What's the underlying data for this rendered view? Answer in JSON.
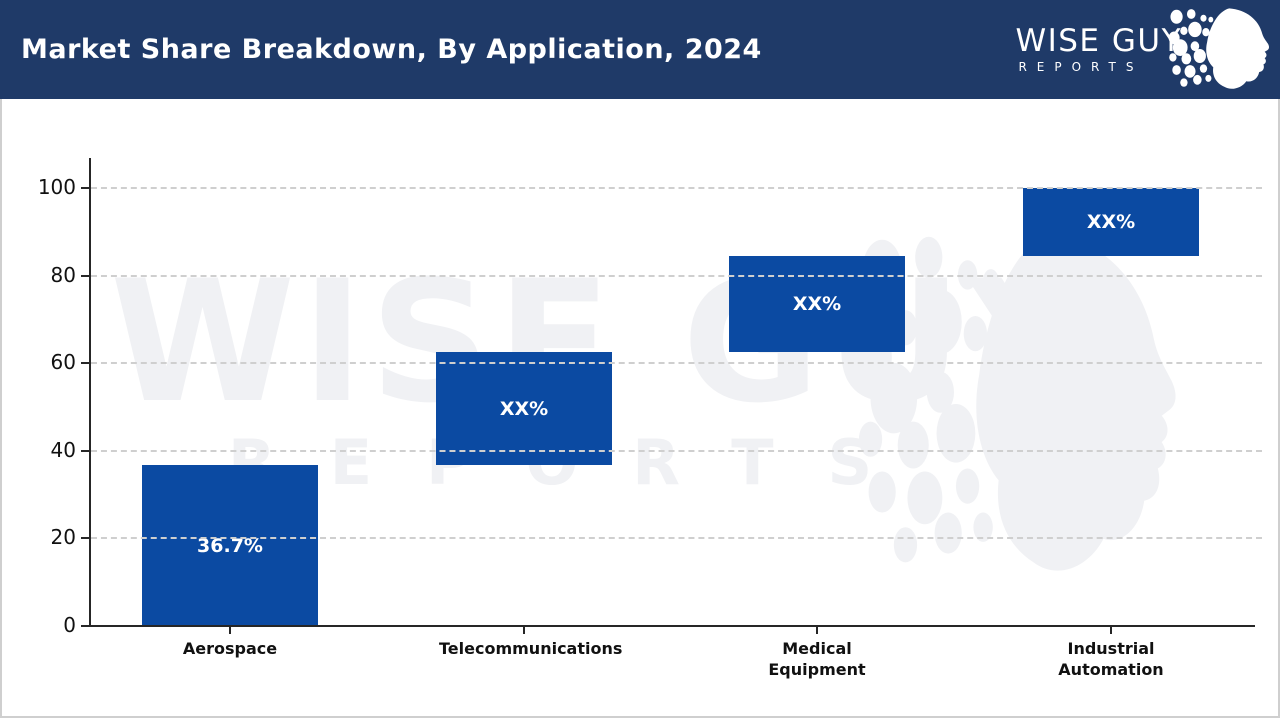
{
  "header": {
    "title": "Market Share Breakdown, By Application, 2024",
    "logo": {
      "line1": "WISE GUY",
      "line2": "REPORTS"
    }
  },
  "watermark": {
    "line1": "WISE GUY",
    "line2": "REPORTS"
  },
  "chart_data": {
    "type": "bar",
    "subtype": "waterfall-floating-bars",
    "title": "Market Share Breakdown, By Application, 2024",
    "categories": [
      "Aerospace",
      "Telecommunications",
      "Medical Equipment",
      "Industrial Automation"
    ],
    "segments": [
      {
        "category": "Aerospace",
        "start": 0,
        "end": 36.7,
        "label": "36.7%"
      },
      {
        "category": "Telecommunications",
        "start": 36.7,
        "end": 62.5,
        "label": "XX%"
      },
      {
        "category": "Medical Equipment",
        "start": 62.5,
        "end": 84.5,
        "label": "XX%"
      },
      {
        "category": "Industrial Automation",
        "start": 84.5,
        "end": 100,
        "label": "XX%"
      }
    ],
    "xlabel": "",
    "ylabel": "",
    "ylim": [
      0,
      100
    ],
    "yticks": [
      0,
      20,
      40,
      60,
      80,
      100
    ],
    "grid": "horizontal-dashed",
    "legend": false,
    "bar_color": "#0b4aa2",
    "value_label_color": "#ffffff"
  },
  "colors": {
    "header_bg": "#1f3a68",
    "bar": "#0b4aa2",
    "gridline": "#cfcfcf",
    "axis": "#262626",
    "watermark": "#f0f1f4",
    "frame_border": "#cfcfcf"
  }
}
